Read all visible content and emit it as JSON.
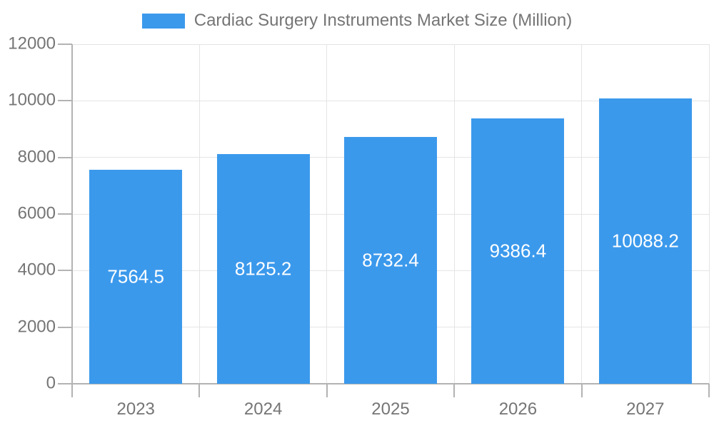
{
  "legend": {
    "label": "Cardiac Surgery Instruments Market Size (Million)"
  },
  "colors": {
    "bar": "#3B99EC",
    "grid": "#E4E4E4",
    "axis": "#B3B3B3",
    "axis_text": "#757575",
    "value_label_text": "#FFFFFF",
    "background": "#FFFFFF"
  },
  "chart_data": {
    "type": "bar",
    "title": "Cardiac Surgery Instruments Market Size (Million)",
    "series_name": "Cardiac Surgery Instruments Market Size (Million)",
    "categories": [
      "2023",
      "2024",
      "2025",
      "2026",
      "2027"
    ],
    "values": [
      7564.5,
      8125.2,
      8732.4,
      9386.4,
      10088.2
    ],
    "value_labels": [
      "7564.5",
      "8125.2",
      "8732.4",
      "9386.4",
      "10088.2"
    ],
    "value_label_position": "inside-center",
    "xlabel": "",
    "ylabel": "",
    "ylim": [
      0,
      12000
    ],
    "yticks": [
      0,
      2000,
      4000,
      6000,
      8000,
      10000,
      12000
    ],
    "grid": true,
    "legend_position": "top-center"
  }
}
